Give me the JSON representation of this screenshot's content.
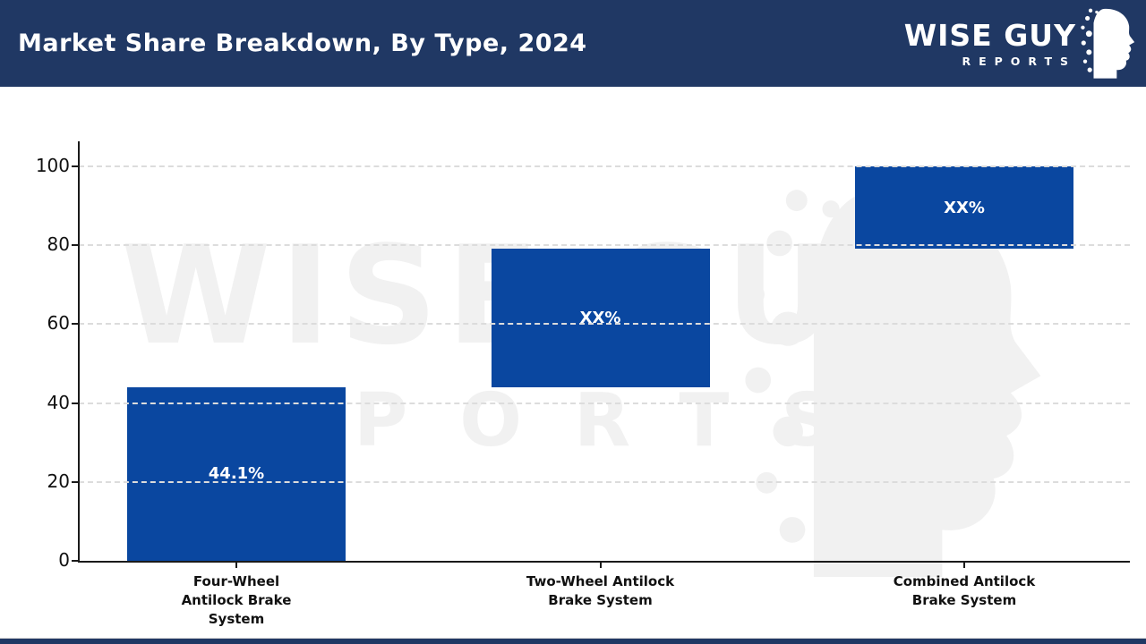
{
  "header": {
    "title": "Market Share Breakdown, By Type, 2024",
    "logo": {
      "brand": "WISE GUY",
      "sub": "REPORTS"
    }
  },
  "watermark": {
    "line1": "WISE GUY",
    "line2": "REPORTS"
  },
  "colors": {
    "header_bg": "#203864",
    "bar": "#0a47a0",
    "grid": "#dcdcdc",
    "axis": "#1a1a1a",
    "bar_label_text": "#ffffff"
  },
  "chart_data": {
    "type": "bar",
    "subtype": "waterfall",
    "title": "Market Share Breakdown, By Type, 2024",
    "xlabel": "",
    "ylabel": "",
    "ylim": [
      0,
      105
    ],
    "yticks": [
      0,
      20,
      40,
      60,
      80,
      100
    ],
    "grid": "dashed horizontal",
    "legend": "none",
    "categories": [
      "Four-Wheel\nAntilock Brake\nSystem",
      "Two-Wheel Antilock\nBrake System",
      "Combined Antilock\nBrake System"
    ],
    "segments": [
      {
        "category": "Four-Wheel Antilock Brake System",
        "start": 0,
        "end": 44.1,
        "value": 44.1,
        "label": "44.1%"
      },
      {
        "category": "Two-Wheel Antilock Brake System",
        "start": 44.1,
        "end": 79.1,
        "value": 35.0,
        "label": "XX%"
      },
      {
        "category": "Combined Antilock Brake System",
        "start": 79.1,
        "end": 100,
        "value": 20.9,
        "label": "XX%"
      }
    ]
  }
}
